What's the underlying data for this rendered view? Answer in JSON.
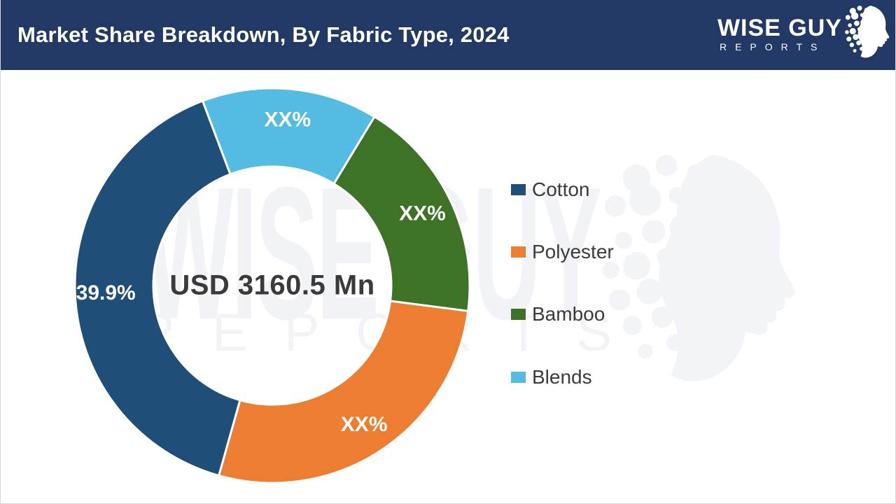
{
  "page": {
    "background": "#FFFFFF",
    "border_color": "#D8D8D8"
  },
  "header": {
    "background": "#223865",
    "title": "Market Share Breakdown, By Fabric Type, 2024",
    "title_color": "#FFFFFF",
    "logo": {
      "line1": "WISE GUY",
      "line2": "REPORTS"
    }
  },
  "watermark": {
    "line1": "WISE GUY",
    "line2": "REPORTS"
  },
  "chart_data": {
    "type": "pie",
    "subtype": "donut",
    "title": "Market Share Breakdown, By Fabric Type, 2024",
    "center_label": "USD 3160.5 Mn",
    "legend_position": "right",
    "segments": [
      {
        "name": "Cotton",
        "value": 39.9,
        "display_label": "39.9%",
        "color": "#1F4E79"
      },
      {
        "name": "Polyester",
        "value": 27.3,
        "display_label": "XX%",
        "color": "#ED7D31"
      },
      {
        "name": "Bamboo",
        "value": 18.4,
        "display_label": "XX%",
        "color": "#3E7227"
      },
      {
        "name": "Blends",
        "value": 14.4,
        "display_label": "XX%",
        "color": "#54BBE3"
      }
    ],
    "layout": {
      "start_angle_deg": 195.7,
      "draw_order": [
        0,
        3,
        2,
        1
      ],
      "label_color": "#FFFFFF",
      "segment_gap_color": "#FFFFFF"
    }
  }
}
